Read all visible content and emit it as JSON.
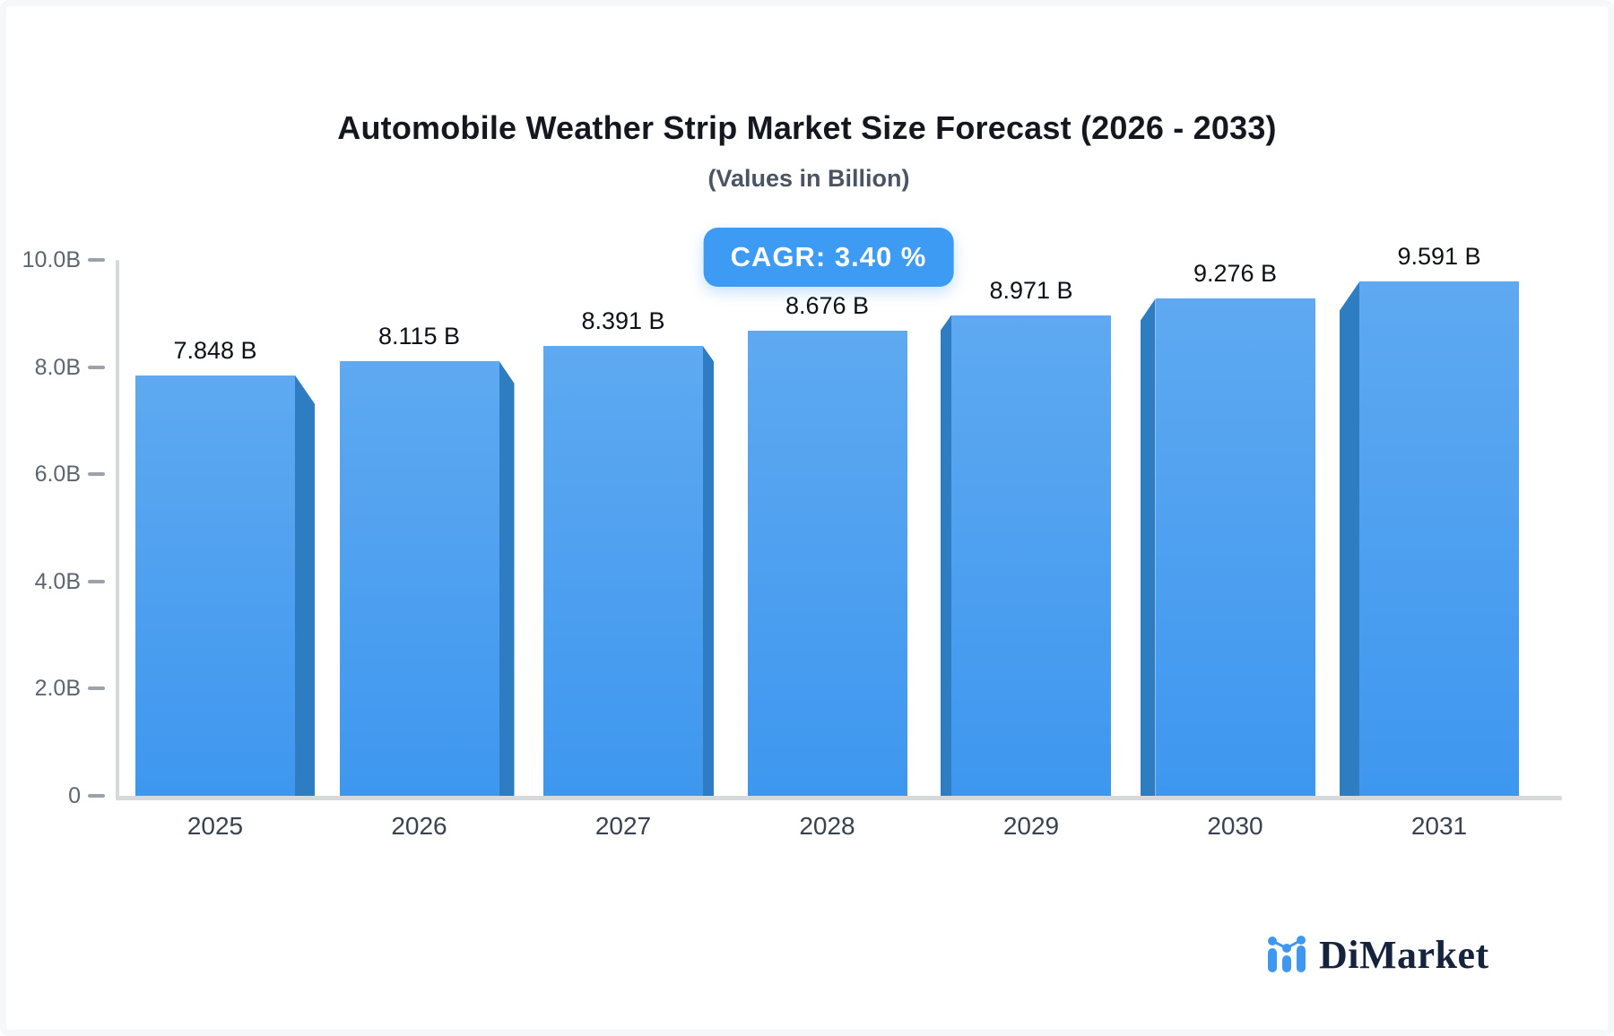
{
  "page": {
    "background": "#ffffff",
    "frame_color": "#f5f7f9"
  },
  "header": {
    "title": "Automobile Weather Strip Market Size Forecast (2026 - 2033)",
    "subtitle": "(Values in Billion)"
  },
  "cagr_badge": {
    "label": "CAGR: 3.40 %",
    "background": "#3d9bf3",
    "text_color": "#ffffff"
  },
  "chart_data": {
    "type": "bar",
    "title": "Automobile Weather Strip Market Size Forecast (2026 - 2033)",
    "subtitle": "(Values in Billion)",
    "annotation": "CAGR: 3.40 %",
    "unit": "Billion",
    "categories": [
      "2025",
      "2026",
      "2027",
      "2028",
      "2029",
      "2030",
      "2031"
    ],
    "values": [
      7.848,
      8.115,
      8.391,
      8.676,
      8.971,
      9.276,
      9.591
    ],
    "value_labels": [
      "7.848 B",
      "8.115 B",
      "8.391 B",
      "8.676 B",
      "8.971 B",
      "9.276 B",
      "9.591 B"
    ],
    "xlabel": "",
    "ylabel": "",
    "ylim": [
      0,
      10
    ],
    "yticks": [
      {
        "value": 0,
        "label": "0"
      },
      {
        "value": 2,
        "label": "2.0B"
      },
      {
        "value": 4,
        "label": "4.0B"
      },
      {
        "value": 6,
        "label": "6.0B"
      },
      {
        "value": 8,
        "label": "8.0B"
      },
      {
        "value": 10,
        "label": "10.0B"
      }
    ],
    "grid": false,
    "legend": "none",
    "bar_style": "3d-bevel",
    "colors": {
      "bar_top": "#5ea9f1",
      "bar_bottom": "#3e97ef",
      "bar_side": "#2e7dc3",
      "axis_line": "#d6d9dc",
      "tick_mark": "#9aa2ab",
      "tick_label": "#5c6570",
      "x_label": "#39424e",
      "value_label": "#0c1118"
    }
  },
  "footer": {
    "brand": "DiMarket",
    "logo_icon": "mini-bar-chart-icon",
    "brand_color": "#15243c",
    "icon_color": "#3f98f0"
  }
}
